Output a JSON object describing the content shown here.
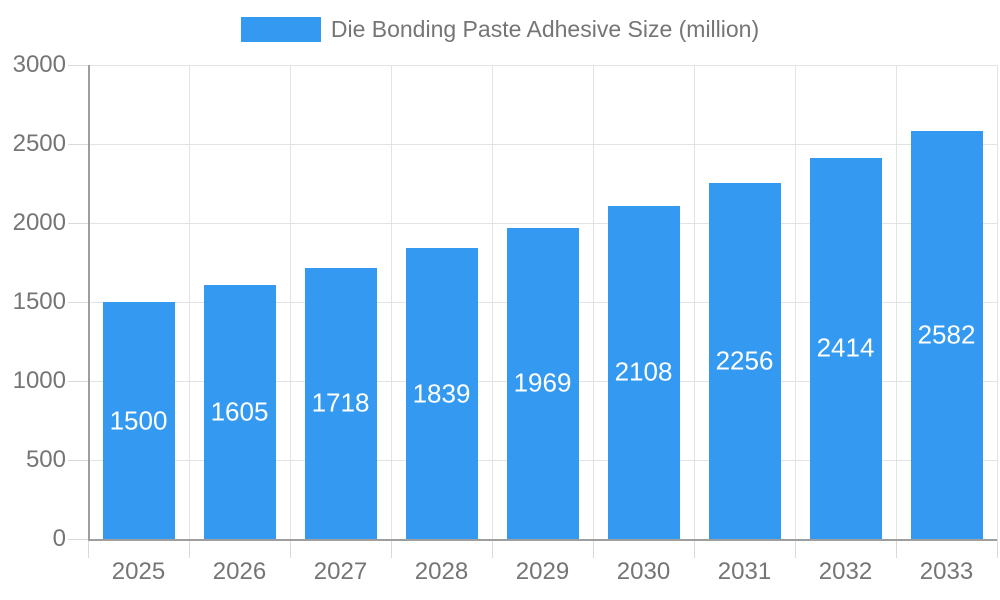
{
  "legend": {
    "label": "Die Bonding Paste Adhesive Size (million)"
  },
  "chart_data": {
    "type": "bar",
    "title": "Die Bonding Paste Adhesive Size (million)",
    "series_name": "Die Bonding Paste Adhesive Size (million)",
    "categories": [
      "2025",
      "2026",
      "2027",
      "2028",
      "2029",
      "2030",
      "2031",
      "2032",
      "2033"
    ],
    "values": [
      1500,
      1605,
      1718,
      1839,
      1969,
      2108,
      2256,
      2414,
      2582
    ],
    "xlabel": "",
    "ylabel": "",
    "ylim": [
      0,
      3000
    ],
    "yticks": [
      0,
      500,
      1000,
      1500,
      2000,
      2500,
      3000
    ],
    "grid": true,
    "legend_position": "top",
    "bar_color": "#3499f1",
    "bar_label_color": "#ffffff",
    "axis_text_color": "#757575",
    "grid_color": "#e3e3e3",
    "tick_color": "#d9d9d9",
    "axis_line_color": "#9e9e9e",
    "background_color": "#ffffff"
  }
}
